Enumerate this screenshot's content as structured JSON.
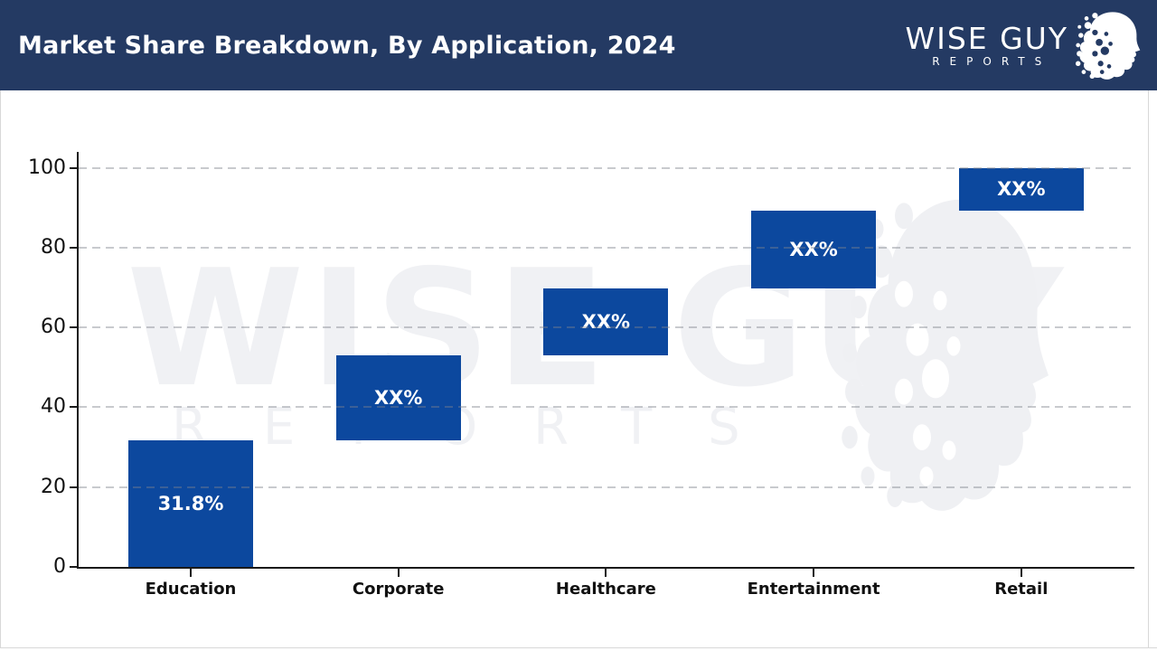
{
  "header": {
    "title": "Market Share Breakdown, By Application, 2024",
    "bg_color": "#243a63",
    "logo": {
      "line1": "WISE GUY",
      "line2": "REPORTS"
    }
  },
  "watermark": {
    "line1": "WISE GUY",
    "line2": "REPORTS"
  },
  "chart_data": {
    "type": "bar",
    "subtype": "waterfall-floating-bars",
    "title": "Market Share Breakdown, By Application, 2024",
    "xlabel": "",
    "ylabel": "",
    "categories": [
      "Education",
      "Corporate",
      "Healthcare",
      "Entertainment",
      "Retail"
    ],
    "segments": [
      {
        "category": "Education",
        "start": 0,
        "end": 31.8,
        "label": "31.8%"
      },
      {
        "category": "Corporate",
        "start": 31.8,
        "end": 53.0,
        "label": "XX%"
      },
      {
        "category": "Healthcare",
        "start": 53.0,
        "end": 69.8,
        "label": "XX%"
      },
      {
        "category": "Entertainment",
        "start": 69.8,
        "end": 89.3,
        "label": "XX%"
      },
      {
        "category": "Retail",
        "start": 89.3,
        "end": 100,
        "label": "XX%"
      }
    ],
    "yticks": [
      0,
      20,
      40,
      60,
      80,
      100
    ],
    "ylim": [
      0,
      104
    ],
    "grid": "horizontal-dashed",
    "legend": "none",
    "bar_color": "#0c489e",
    "bar_label_color": "#ffffff"
  }
}
